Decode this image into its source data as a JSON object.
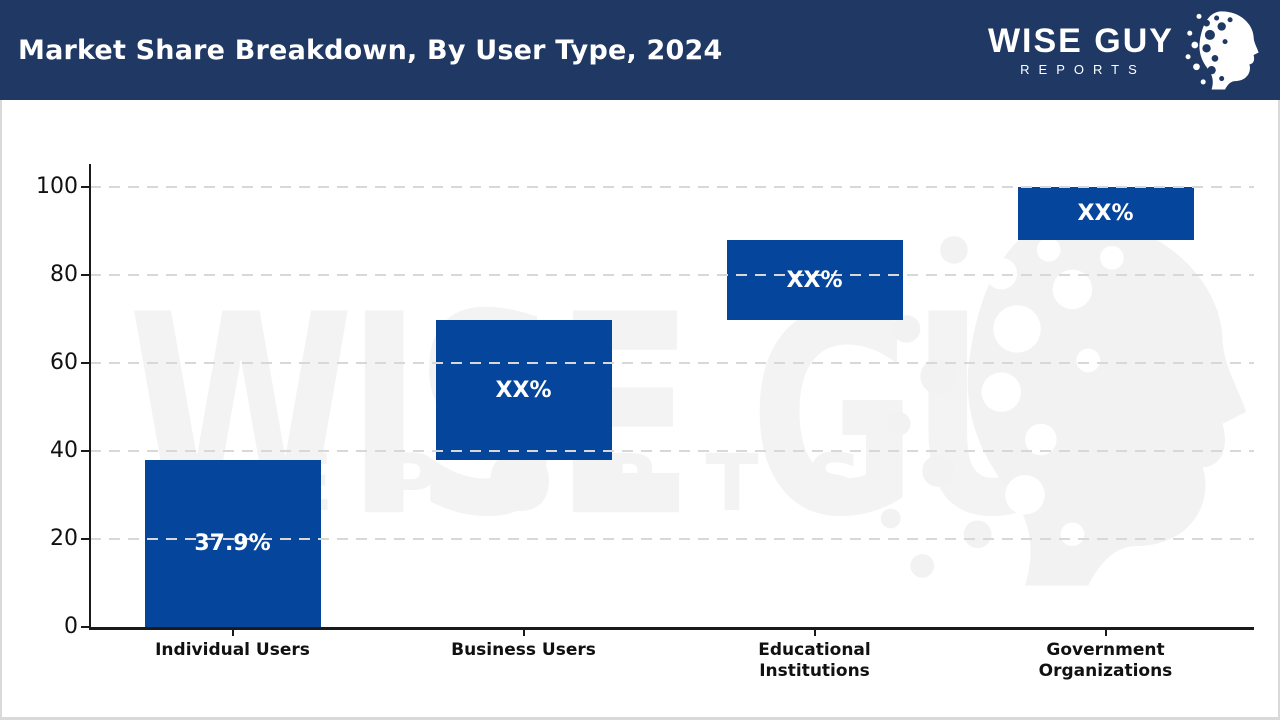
{
  "header": {
    "title": "Market Share Breakdown, By User Type, 2024",
    "bg_color": "#1f3864",
    "logo": {
      "line1": "WISE GUY",
      "line2": "REPORTS"
    }
  },
  "watermark": {
    "line1": "WISE GUY",
    "line2": "REPORTS"
  },
  "chart_data": {
    "type": "bar",
    "variant": "floating-waterfall",
    "title": "Market Share Breakdown, By User Type, 2024",
    "categories": [
      "Individual Users",
      "Business Users",
      "Educational\nInstitutions",
      "Government\nOrganizations"
    ],
    "segments": [
      {
        "category": "Individual Users",
        "start": 0,
        "end": 37.9,
        "label": "37.9%"
      },
      {
        "category": "Business Users",
        "start": 37.9,
        "end": 69.8,
        "label": "XX%"
      },
      {
        "category": "Educational Institutions",
        "start": 69.8,
        "end": 87.9,
        "label": "XX%"
      },
      {
        "category": "Government Organizations",
        "start": 87.9,
        "end": 100,
        "label": "XX%"
      }
    ],
    "xlabel": "",
    "ylabel": "",
    "yticks": [
      0,
      20,
      40,
      60,
      80,
      100
    ],
    "ylim": [
      0,
      105
    ],
    "grid": {
      "axis": "y",
      "style": "dashed",
      "color": "#d8d8d8",
      "drawn_above_bars": true
    },
    "bar_color": "#05459c",
    "bar_label_color": "#ffffff",
    "axis_color": "#1a1a1a",
    "legend": "none"
  }
}
